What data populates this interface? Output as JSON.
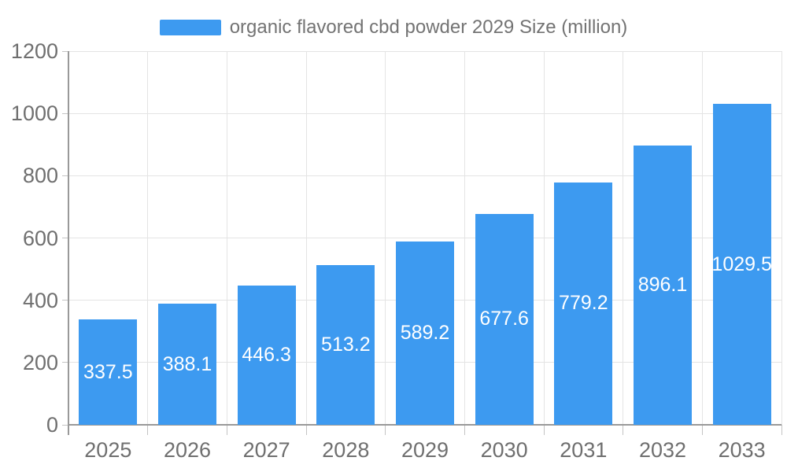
{
  "chart_data": {
    "type": "bar",
    "legend": "organic flavored cbd powder 2029 Size (million)",
    "categories": [
      "2025",
      "2026",
      "2027",
      "2028",
      "2029",
      "2030",
      "2031",
      "2032",
      "2033"
    ],
    "values": [
      337.5,
      388.1,
      446.3,
      513.2,
      589.2,
      677.6,
      779.2,
      896.1,
      1029.5
    ],
    "value_labels": [
      "337.5",
      "388.1",
      "446.3",
      "513.2",
      "589.2",
      "677.6",
      "779.2",
      "896.1",
      "1029.5"
    ],
    "ylim": [
      0,
      1200
    ],
    "y_ticks": [
      0,
      200,
      400,
      600,
      800,
      1000,
      1200
    ],
    "grid": true,
    "legend_position": "top-center",
    "value_label_position": "inside-center"
  },
  "colors": {
    "bar": "#3d9af0",
    "grid": "#e4e4e4",
    "axis": "#999999",
    "tick": "#c4c4c4",
    "axis_text": "#6f6f6f",
    "legend_text": "#737373",
    "value_label_text": "#ffffff",
    "background": "#ffffff"
  }
}
